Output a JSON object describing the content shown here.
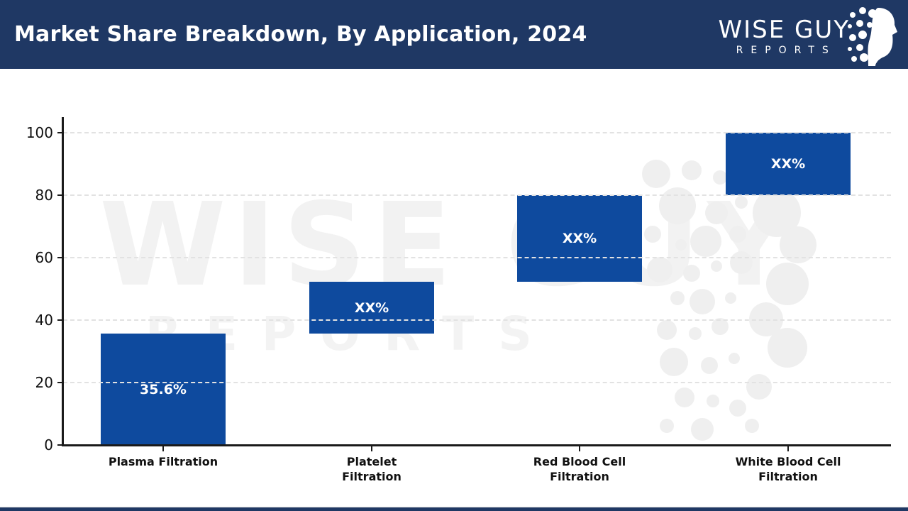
{
  "header": {
    "title": "Market Share Breakdown, By Application, 2024",
    "logo": {
      "line1": "WISE GUY",
      "line2": "REPORTS"
    }
  },
  "watermark": {
    "line1": "WISE GUY",
    "line2": "REPORTS"
  },
  "colors": {
    "header_bg": "#1f3864",
    "footer_bg": "#1f3864",
    "bar": "#0e4a9e",
    "gridline": "#e2e2e2",
    "axis": "#1a1a1a",
    "value_label": "#ffffff",
    "watermark": "#f2f2f2"
  },
  "chart_data": {
    "type": "bar",
    "subtype": "waterfall",
    "title": "Market Share Breakdown, By Application, 2024",
    "categories": [
      "Plasma Filtration",
      "Platelet Filtration",
      "Red Blood Cell Filtration",
      "White Blood Cell Filtration"
    ],
    "category_label_lines": [
      [
        "Plasma Filtration"
      ],
      [
        "Platelet",
        "Filtration"
      ],
      [
        "Red Blood Cell",
        "Filtration"
      ],
      [
        "White Blood Cell",
        "Filtration"
      ]
    ],
    "segments": [
      {
        "category": "Plasma Filtration",
        "start": 0,
        "end": 35.6,
        "label": "35.6%"
      },
      {
        "category": "Platelet Filtration",
        "start": 35.6,
        "end": 52.3,
        "label": "XX%"
      },
      {
        "category": "Red Blood Cell Filtration",
        "start": 52.3,
        "end": 79.9,
        "label": "XX%"
      },
      {
        "category": "White Blood Cell Filtration",
        "start": 79.9,
        "end": 100,
        "label": "XX%"
      }
    ],
    "y_ticks": [
      0,
      20,
      40,
      60,
      80,
      100
    ],
    "ylim": [
      0,
      105
    ],
    "xlabel": "",
    "ylabel": "",
    "grid": "horizontal-dashed",
    "legend": "none",
    "bar_color": "#0e4a9e",
    "value_label_color": "#ffffff"
  }
}
